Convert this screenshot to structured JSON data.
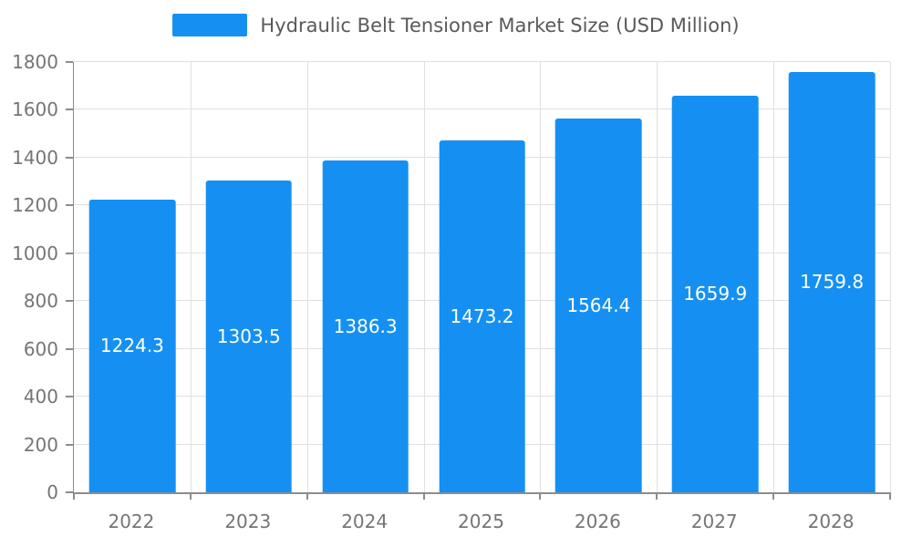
{
  "chart_data": {
    "type": "bar",
    "title": "Hydraulic Belt Tensioner Market Size (USD Million)",
    "categories": [
      "2022",
      "2023",
      "2024",
      "2025",
      "2026",
      "2027",
      "2028"
    ],
    "values": [
      1224.3,
      1303.5,
      1386.3,
      1473.2,
      1564.4,
      1659.9,
      1759.8
    ],
    "xlabel": "",
    "ylabel": "",
    "ylim": [
      0,
      1800
    ],
    "yticks": [
      0,
      200,
      400,
      600,
      800,
      1000,
      1200,
      1400,
      1600,
      1800
    ],
    "grid": true,
    "legend_position": "top",
    "colors": {
      "bar": "#1590f2",
      "grid": "#e0e0e0",
      "axis": "#8c8c8c",
      "tick_label": "#757575",
      "title": "#595959",
      "bar_label": "#ffffff"
    }
  }
}
